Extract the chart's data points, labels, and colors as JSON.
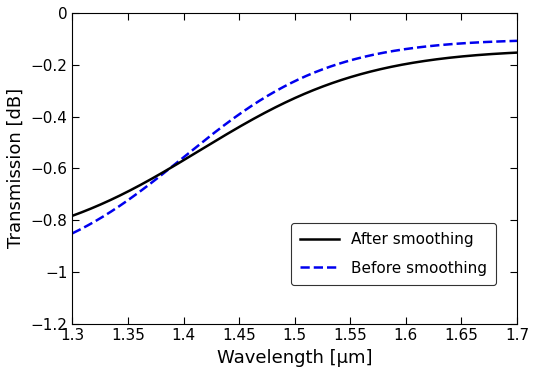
{
  "title": "",
  "xlabel": "Wavelength [μm]",
  "ylabel": "Transmission [dB]",
  "xlim": [
    1.3,
    1.7
  ],
  "ylim": [
    -1.2,
    0.0
  ],
  "xticks": [
    1.3,
    1.35,
    1.4,
    1.45,
    1.5,
    1.55,
    1.6,
    1.65,
    1.7
  ],
  "yticks": [
    0,
    -0.2,
    -0.4,
    -0.6,
    -0.8,
    -1.0,
    -1.2
  ],
  "after_color": "#000000",
  "before_color": "#0000ee",
  "legend_after": "After smoothing",
  "legend_before": "Before smoothing",
  "background_color": "#ffffff",
  "figsize": [
    5.36,
    3.74
  ],
  "dpi": 100
}
